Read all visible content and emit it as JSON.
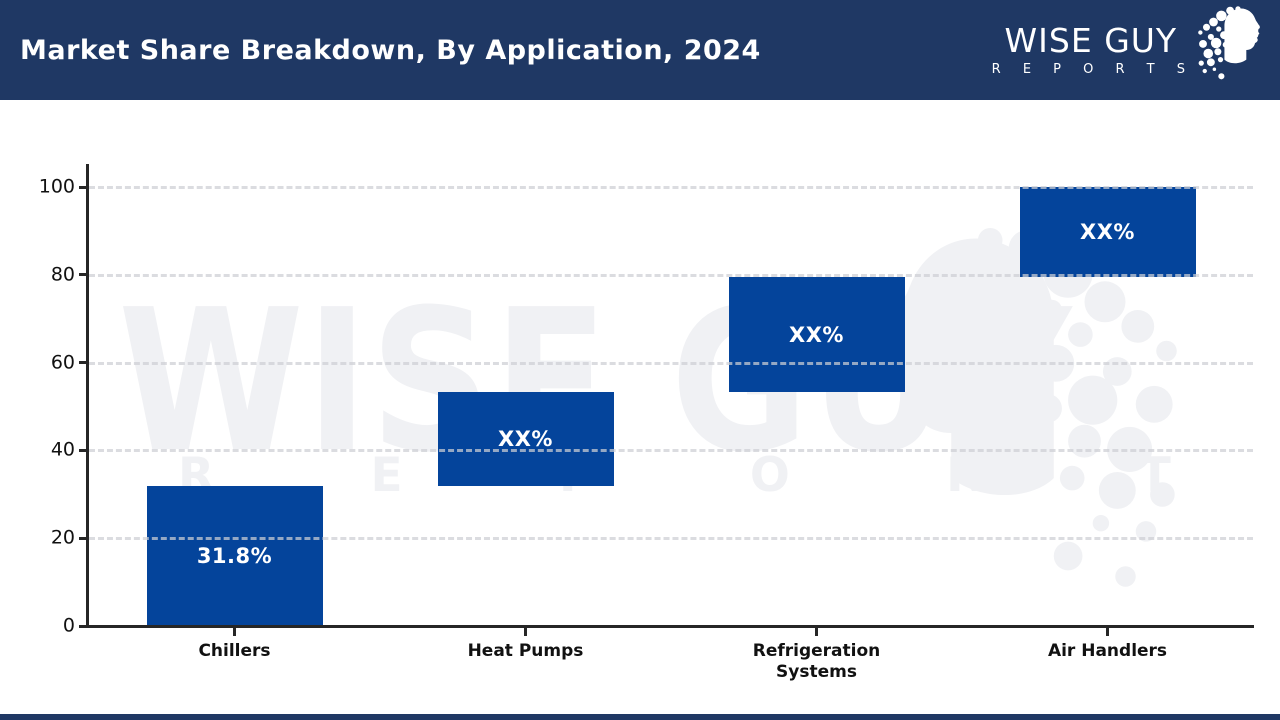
{
  "header": {
    "title": "Market Share Breakdown, By Application, 2024",
    "logo": {
      "line1": "WISE GUY",
      "line2": "R E P O R T S"
    }
  },
  "watermark": {
    "line1": "WISE GUY",
    "line2": "R E P O R T S"
  },
  "chart_data": {
    "type": "bar",
    "subtype": "waterfall",
    "title": "Market Share Breakdown, By Application, 2024",
    "categories": [
      "Chillers",
      "Heat Pumps",
      "Refrigeration\nSystems",
      "Air Handlers"
    ],
    "segments": [
      {
        "category": "Chillers",
        "start": 0,
        "end": 31.8,
        "value": 31.8,
        "label": "31.8%"
      },
      {
        "category": "Heat Pumps",
        "start": 31.8,
        "end": 53.2,
        "value": 21.4,
        "label": "XX%"
      },
      {
        "category": "Refrigeration Systems",
        "start": 53.2,
        "end": 79.5,
        "value": 26.3,
        "label": "XX%"
      },
      {
        "category": "Air Handlers",
        "start": 79.5,
        "end": 100,
        "value": 20.5,
        "label": "XX%"
      }
    ],
    "xlabel": "",
    "ylabel": "",
    "ylim": [
      0,
      105
    ],
    "yticks": [
      0,
      20,
      40,
      60,
      80,
      100
    ],
    "grid": {
      "axis": "y",
      "style": "dashed",
      "drawn_over_bars": true
    },
    "legend": "none",
    "colors": {
      "bar": "#04449b",
      "bar_label": "#ffffff",
      "axis": "#262626",
      "gridline": "#d9d9d9",
      "header_bg": "#1f3864",
      "watermark": "#f0f1f4",
      "plot_bg": "#ffffff"
    }
  }
}
